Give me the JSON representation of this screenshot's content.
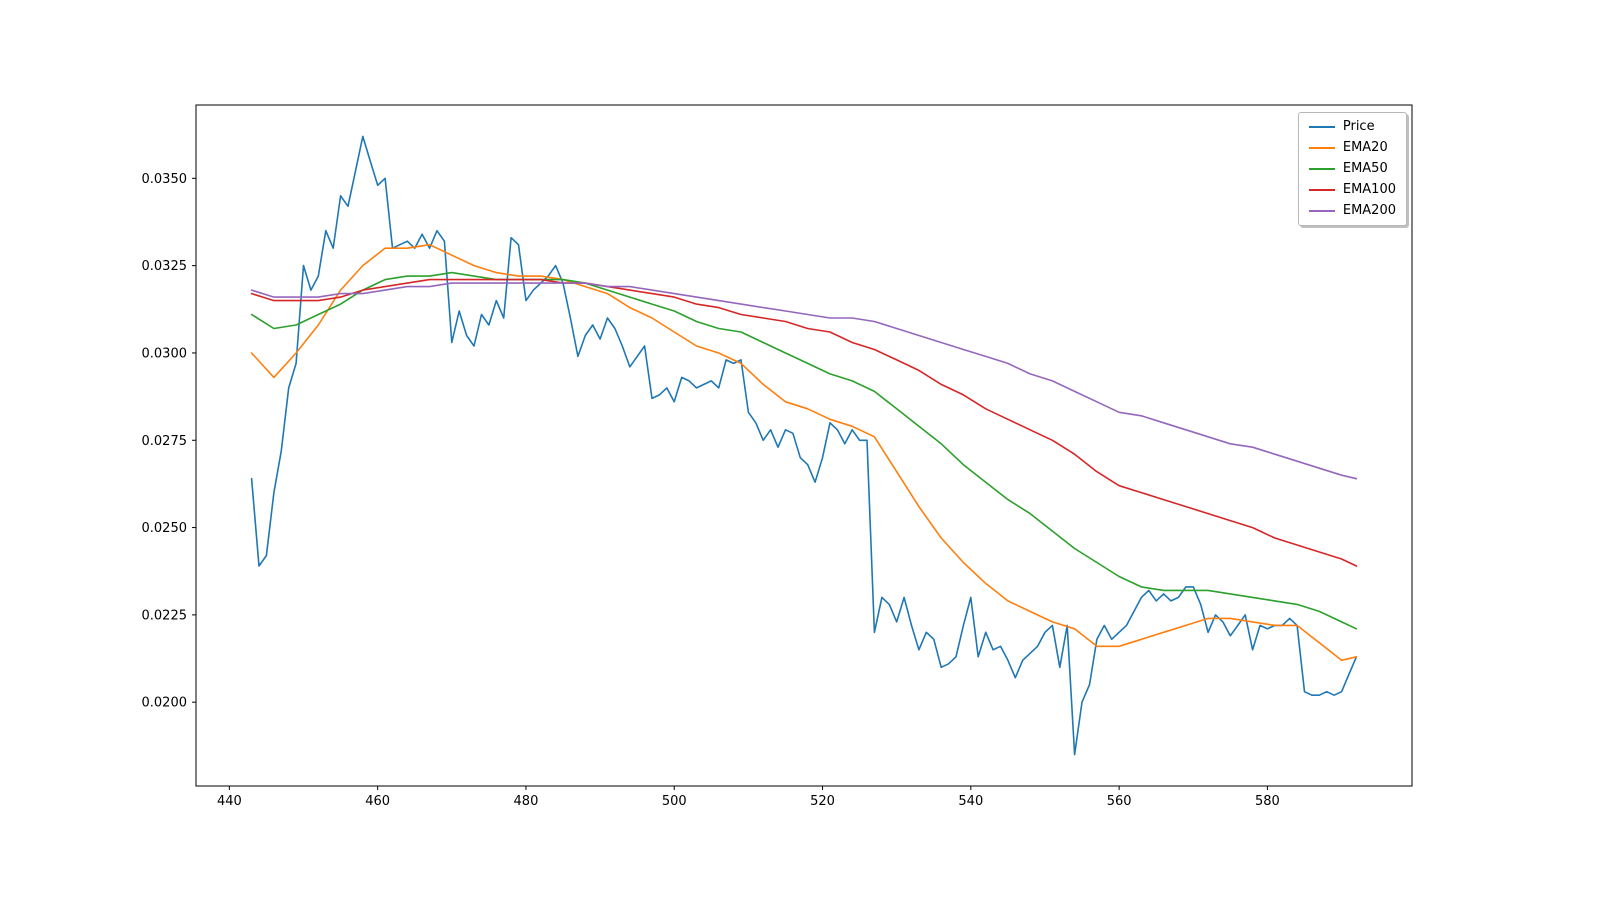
{
  "figure": {
    "background": "#ffffff"
  },
  "chart_data": {
    "type": "line",
    "title": "",
    "xlabel": "",
    "ylabel": "",
    "grid": false,
    "xlim": [
      435.5,
      599.5
    ],
    "ylim": [
      0.0176,
      0.0371
    ],
    "legend": {
      "position": "upper right",
      "labels": [
        "Price",
        "EMA20",
        "EMA50",
        "EMA100",
        "EMA200"
      ]
    },
    "x_ticks": {
      "values": [
        440,
        460,
        480,
        500,
        520,
        540,
        560,
        580
      ],
      "labels": [
        "440",
        "460",
        "480",
        "500",
        "520",
        "540",
        "560",
        "580"
      ]
    },
    "y_ticks": {
      "values": [
        0.02,
        0.0225,
        0.025,
        0.0275,
        0.03,
        0.0325,
        0.035
      ],
      "labels": [
        "0.0200",
        "0.0225",
        "0.0250",
        "0.0275",
        "0.0300",
        "0.0325",
        "0.0350"
      ]
    },
    "series": [
      {
        "name": "Price",
        "color": "#1f77b4",
        "x_start": 443,
        "x_step": 1,
        "values": [
          0.0264,
          0.0239,
          0.0242,
          0.026,
          0.0272,
          0.029,
          0.0297,
          0.0325,
          0.0318,
          0.0322,
          0.0335,
          0.033,
          0.0345,
          0.0342,
          0.0352,
          0.0362,
          0.0355,
          0.0348,
          0.035,
          0.033,
          0.0331,
          0.0332,
          0.033,
          0.0334,
          0.033,
          0.0335,
          0.0332,
          0.0303,
          0.0312,
          0.0305,
          0.0302,
          0.0311,
          0.0308,
          0.0315,
          0.031,
          0.0333,
          0.0331,
          0.0315,
          0.0318,
          0.032,
          0.0322,
          0.0325,
          0.032,
          0.031,
          0.0299,
          0.0305,
          0.0308,
          0.0304,
          0.031,
          0.0307,
          0.0302,
          0.0296,
          0.0299,
          0.0302,
          0.0287,
          0.0288,
          0.029,
          0.0286,
          0.0293,
          0.0292,
          0.029,
          0.0291,
          0.0292,
          0.029,
          0.0298,
          0.0297,
          0.0298,
          0.0283,
          0.028,
          0.0275,
          0.0278,
          0.0273,
          0.0278,
          0.0277,
          0.027,
          0.0268,
          0.0263,
          0.027,
          0.028,
          0.0278,
          0.0274,
          0.0278,
          0.0275,
          0.0275,
          0.022,
          0.023,
          0.0228,
          0.0223,
          0.023,
          0.0222,
          0.0215,
          0.022,
          0.0218,
          0.021,
          0.0211,
          0.0213,
          0.0222,
          0.023,
          0.0213,
          0.022,
          0.0215,
          0.0216,
          0.0212,
          0.0207,
          0.0212,
          0.0214,
          0.0216,
          0.022,
          0.0222,
          0.021,
          0.0222,
          0.0185,
          0.02,
          0.0205,
          0.0218,
          0.0222,
          0.0218,
          0.022,
          0.0222,
          0.0226,
          0.023,
          0.0232,
          0.0229,
          0.0231,
          0.0229,
          0.023,
          0.0233,
          0.0233,
          0.0228,
          0.022,
          0.0225,
          0.0223,
          0.0219,
          0.0222,
          0.0225,
          0.0215,
          0.0222,
          0.0221,
          0.0222,
          0.0222,
          0.0224,
          0.0222,
          0.0203,
          0.0202,
          0.0202,
          0.0203,
          0.0202,
          0.0203,
          0.0208,
          0.0213
        ]
      },
      {
        "name": "EMA20",
        "color": "#ff7f0e",
        "x": [
          443,
          446,
          449,
          452,
          455,
          458,
          461,
          464,
          467,
          470,
          473,
          476,
          479,
          482,
          485,
          488,
          491,
          494,
          497,
          500,
          503,
          506,
          509,
          512,
          515,
          518,
          521,
          524,
          527,
          530,
          533,
          536,
          539,
          542,
          545,
          548,
          551,
          554,
          557,
          560,
          563,
          566,
          569,
          572,
          575,
          578,
          581,
          584,
          587,
          590,
          592
        ],
        "values": [
          0.03,
          0.0293,
          0.03,
          0.0308,
          0.0318,
          0.0325,
          0.033,
          0.033,
          0.0331,
          0.0328,
          0.0325,
          0.0323,
          0.0322,
          0.0322,
          0.0321,
          0.0319,
          0.0317,
          0.0313,
          0.031,
          0.0306,
          0.0302,
          0.03,
          0.0297,
          0.0291,
          0.0286,
          0.0284,
          0.0281,
          0.0279,
          0.0276,
          0.0266,
          0.0256,
          0.0247,
          0.024,
          0.0234,
          0.0229,
          0.0226,
          0.0223,
          0.0221,
          0.0216,
          0.0216,
          0.0218,
          0.022,
          0.0222,
          0.0224,
          0.0224,
          0.0223,
          0.0222,
          0.0222,
          0.0217,
          0.0212,
          0.0213
        ]
      },
      {
        "name": "EMA50",
        "color": "#2ca02c",
        "x": [
          443,
          446,
          449,
          452,
          455,
          458,
          461,
          464,
          467,
          470,
          473,
          476,
          479,
          482,
          485,
          488,
          491,
          494,
          497,
          500,
          503,
          506,
          509,
          512,
          515,
          518,
          521,
          524,
          527,
          530,
          533,
          536,
          539,
          542,
          545,
          548,
          551,
          554,
          557,
          560,
          563,
          566,
          569,
          572,
          575,
          578,
          581,
          584,
          587,
          590,
          592
        ],
        "values": [
          0.0311,
          0.0307,
          0.0308,
          0.0311,
          0.0314,
          0.0318,
          0.0321,
          0.0322,
          0.0322,
          0.0323,
          0.0322,
          0.0321,
          0.0321,
          0.0321,
          0.0321,
          0.032,
          0.0318,
          0.0316,
          0.0314,
          0.0312,
          0.0309,
          0.0307,
          0.0306,
          0.0303,
          0.03,
          0.0297,
          0.0294,
          0.0292,
          0.0289,
          0.0284,
          0.0279,
          0.0274,
          0.0268,
          0.0263,
          0.0258,
          0.0254,
          0.0249,
          0.0244,
          0.024,
          0.0236,
          0.0233,
          0.0232,
          0.0232,
          0.0232,
          0.0231,
          0.023,
          0.0229,
          0.0228,
          0.0226,
          0.0223,
          0.0221
        ]
      },
      {
        "name": "EMA100",
        "color": "#d62728",
        "x": [
          443,
          446,
          449,
          452,
          455,
          458,
          461,
          464,
          467,
          470,
          473,
          476,
          479,
          482,
          485,
          488,
          491,
          494,
          497,
          500,
          503,
          506,
          509,
          512,
          515,
          518,
          521,
          524,
          527,
          530,
          533,
          536,
          539,
          542,
          545,
          548,
          551,
          554,
          557,
          560,
          563,
          566,
          569,
          572,
          575,
          578,
          581,
          584,
          587,
          590,
          592
        ],
        "values": [
          0.0317,
          0.0315,
          0.0315,
          0.0315,
          0.0316,
          0.0318,
          0.0319,
          0.032,
          0.0321,
          0.0321,
          0.0321,
          0.0321,
          0.0321,
          0.0321,
          0.032,
          0.032,
          0.0319,
          0.0318,
          0.0317,
          0.0316,
          0.0314,
          0.0313,
          0.0311,
          0.031,
          0.0309,
          0.0307,
          0.0306,
          0.0303,
          0.0301,
          0.0298,
          0.0295,
          0.0291,
          0.0288,
          0.0284,
          0.0281,
          0.0278,
          0.0275,
          0.0271,
          0.0266,
          0.0262,
          0.026,
          0.0258,
          0.0256,
          0.0254,
          0.0252,
          0.025,
          0.0247,
          0.0245,
          0.0243,
          0.0241,
          0.0239
        ]
      },
      {
        "name": "EMA200",
        "color": "#9467bd",
        "x": [
          443,
          446,
          449,
          452,
          455,
          458,
          461,
          464,
          467,
          470,
          473,
          476,
          479,
          482,
          485,
          488,
          491,
          494,
          497,
          500,
          503,
          506,
          509,
          512,
          515,
          518,
          521,
          524,
          527,
          530,
          533,
          536,
          539,
          542,
          545,
          548,
          551,
          554,
          557,
          560,
          563,
          566,
          569,
          572,
          575,
          578,
          581,
          584,
          587,
          590,
          592
        ],
        "values": [
          0.0318,
          0.0316,
          0.0316,
          0.0316,
          0.0317,
          0.0317,
          0.0318,
          0.0319,
          0.0319,
          0.032,
          0.032,
          0.032,
          0.032,
          0.032,
          0.032,
          0.032,
          0.0319,
          0.0319,
          0.0318,
          0.0317,
          0.0316,
          0.0315,
          0.0314,
          0.0313,
          0.0312,
          0.0311,
          0.031,
          0.031,
          0.0309,
          0.0307,
          0.0305,
          0.0303,
          0.0301,
          0.0299,
          0.0297,
          0.0294,
          0.0292,
          0.0289,
          0.0286,
          0.0283,
          0.0282,
          0.028,
          0.0278,
          0.0276,
          0.0274,
          0.0273,
          0.0271,
          0.0269,
          0.0267,
          0.0265,
          0.0264
        ]
      }
    ]
  }
}
